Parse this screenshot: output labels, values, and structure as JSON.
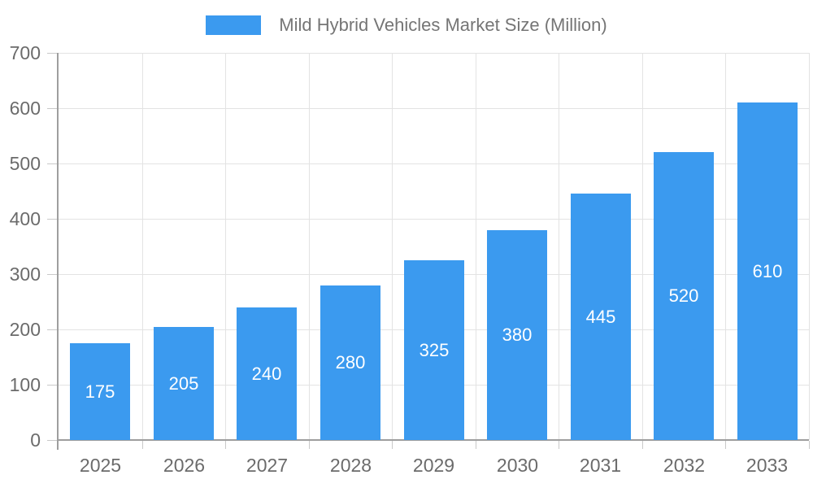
{
  "chart_data": {
    "type": "bar",
    "title": "Mild Hybrid Vehicles Market Size (Million)",
    "legend": [
      "Mild Hybrid Vehicles Market Size (Million)"
    ],
    "legend_position": "top",
    "categories": [
      "2025",
      "2026",
      "2027",
      "2028",
      "2029",
      "2030",
      "2031",
      "2032",
      "2033"
    ],
    "values": [
      175,
      205,
      240,
      280,
      325,
      380,
      445,
      520,
      610
    ],
    "xlabel": "",
    "ylabel": "",
    "ylim": [
      0,
      700
    ],
    "ytick_step": 100,
    "yticks": [
      "0",
      "100",
      "200",
      "300",
      "400",
      "500",
      "600",
      "700"
    ],
    "grid": true,
    "value_labels_inside_bars": true,
    "colors": {
      "bar": "#3B9AEF",
      "grid": "#E3E3E3",
      "axis": "#9E9E9E",
      "tick": "#C9C9C9",
      "axis_label": "#6B6B6B",
      "legend_text": "#757575",
      "value_label": "#FFFFFF",
      "background": "#FFFFFF"
    }
  }
}
